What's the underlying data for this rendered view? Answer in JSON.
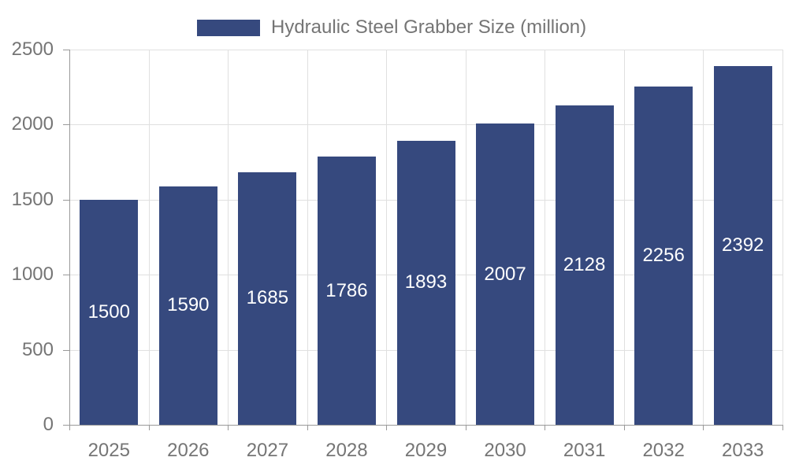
{
  "legend": {
    "label": "Hydraulic Steel Grabber Size (million)"
  },
  "chart_data": {
    "type": "bar",
    "title": "Hydraulic Steel Grabber Size (million)",
    "categories": [
      "2025",
      "2026",
      "2027",
      "2028",
      "2029",
      "2030",
      "2031",
      "2032",
      "2033"
    ],
    "values": [
      1500,
      1590,
      1685,
      1786,
      1893,
      2007,
      2128,
      2256,
      2392
    ],
    "series": [
      {
        "name": "Hydraulic Steel Grabber Size (million)",
        "values": [
          1500,
          1590,
          1685,
          1786,
          1893,
          2007,
          2128,
          2256,
          2392
        ]
      }
    ],
    "xlabel": "",
    "ylabel": "",
    "ylim": [
      0,
      2500
    ],
    "yticks": [
      0,
      500,
      1000,
      1500,
      2000,
      2500
    ],
    "grid": true,
    "legend_position": "top",
    "value_labels": "inside-middle",
    "colors": {
      "bar": "#36497e",
      "value_label": "#ffffff",
      "axis_text": "#757575",
      "grid_line": "#e0e0e0",
      "axis_line": "#999999"
    }
  }
}
